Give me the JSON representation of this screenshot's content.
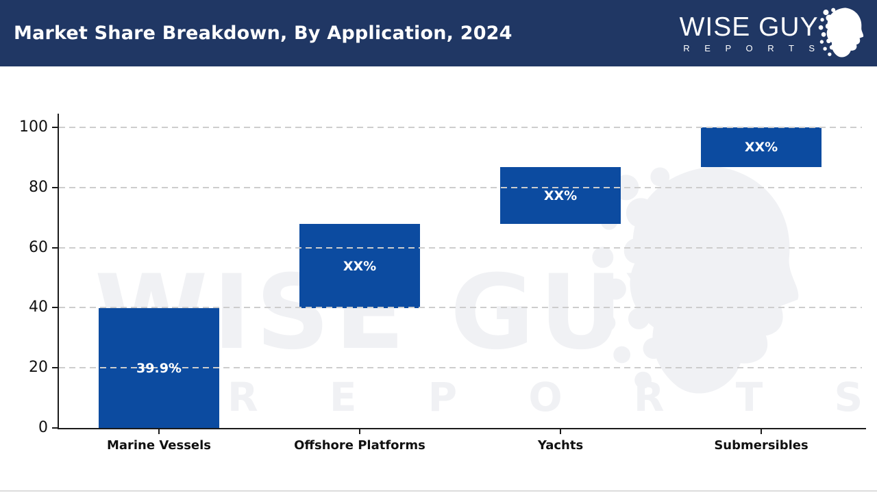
{
  "header": {
    "title": "Market Share Breakdown, By Application, 2024",
    "logo": {
      "primary": "WISE GUY",
      "secondary": "R E P O R T S"
    }
  },
  "watermark": {
    "primary": "WISE GUY",
    "secondary": "R E P O R T S"
  },
  "colors": {
    "header_bg": "#203764",
    "bar": "#0c4ba0",
    "bar_label": "#ffffff",
    "grid": "#cdcdcd",
    "axis": "#1a1a1a",
    "watermark": "#f0f1f4"
  },
  "chart_data": {
    "type": "bar",
    "subtype": "waterfall",
    "title": "Market Share Breakdown, By Application, 2024",
    "xlabel": "",
    "ylabel": "",
    "categories": [
      "Marine Vessels",
      "Offshore Platforms",
      "Yachts",
      "Submersibles"
    ],
    "segments": [
      {
        "category": "Marine Vessels",
        "start": 0,
        "end": 39.9,
        "label": "39.9%"
      },
      {
        "category": "Offshore Platforms",
        "start": 39.9,
        "end": 67.9,
        "label": "XX%"
      },
      {
        "category": "Yachts",
        "start": 67.9,
        "end": 86.9,
        "label": "XX%"
      },
      {
        "category": "Submersibles",
        "start": 86.9,
        "end": 100,
        "label": "XX%"
      }
    ],
    "ylim": [
      0,
      105
    ],
    "yticks": [
      0,
      20,
      40,
      60,
      80,
      100
    ],
    "grid": true,
    "legend": false
  }
}
